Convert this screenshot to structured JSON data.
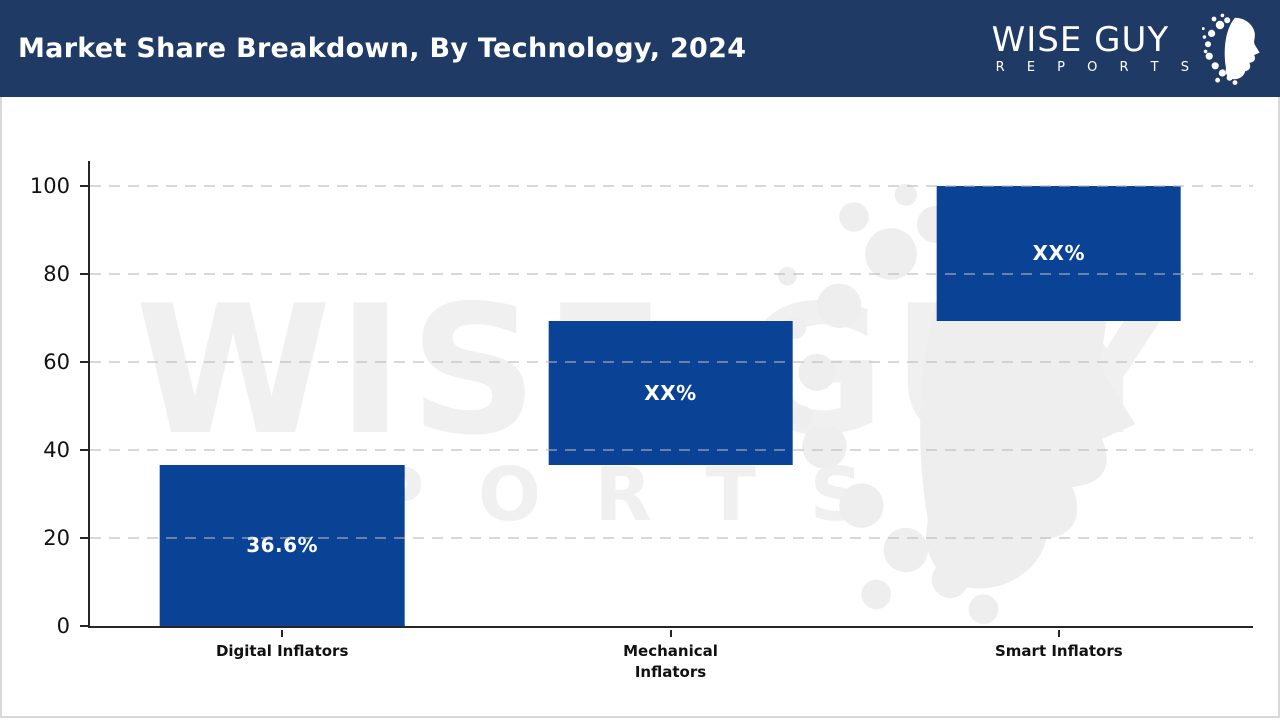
{
  "header": {
    "title": "Market Share Breakdown, By Technology, 2024",
    "bg_color": "#203a66",
    "logo": {
      "wordmark": "WISE GUY",
      "subtext": "R E P O R T S"
    }
  },
  "watermark": {
    "line1": "WISE GUY",
    "line2": "R E P O R T S"
  },
  "chart_data": {
    "type": "bar",
    "subtype": "floating-segment-bars",
    "title": "Market Share Breakdown, By Technology, 2024",
    "categories": [
      "Digital Inflators",
      "Mechanical\nInflators",
      "Smart Inflators"
    ],
    "bars": [
      {
        "category": "Digital Inflators",
        "from": 0,
        "to": 36.6,
        "label": "36.6%"
      },
      {
        "category": "Mechanical Inflators",
        "from": 36.6,
        "to": 69.4,
        "label": "XX%"
      },
      {
        "category": "Smart Inflators",
        "from": 69.4,
        "to": 100,
        "label": "XX%"
      }
    ],
    "xlabel": "",
    "ylabel": "",
    "y_ticks": [
      0,
      20,
      40,
      60,
      80,
      100
    ],
    "ylim": [
      0,
      107
    ],
    "grid": "horizontal-dashed",
    "grid_color": "#b9b9b9",
    "axis_color": "#262626",
    "bar_color": "#0a4296",
    "bar_label_color": "#ffffff",
    "legend": "none"
  }
}
